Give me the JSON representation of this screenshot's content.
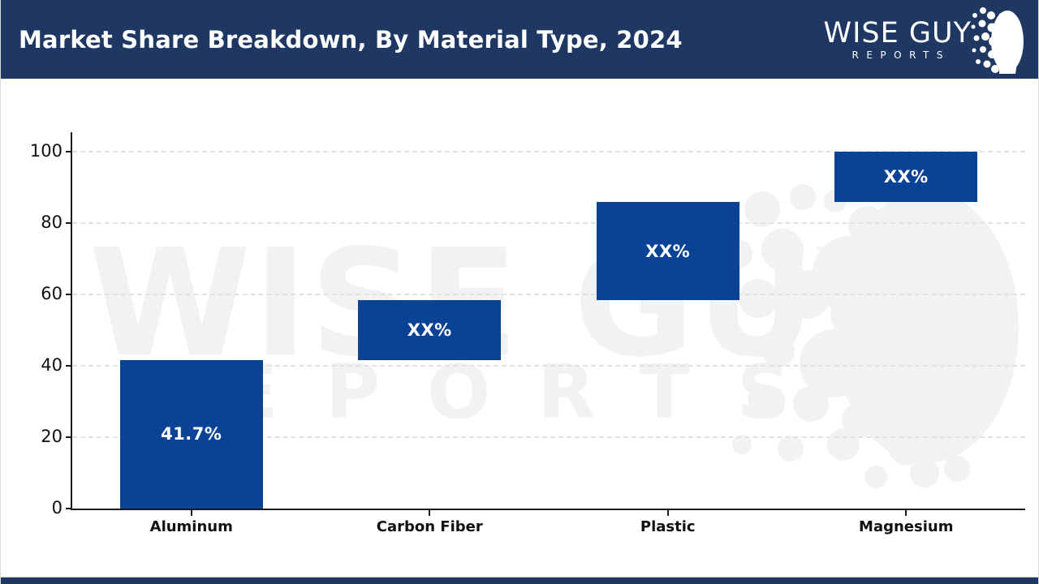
{
  "header": {
    "title": "Market Share Breakdown, By Material Type, 2024",
    "logo": {
      "line1": "WISE GUY",
      "line2": "REPORTS"
    }
  },
  "watermark": {
    "line1": "WISE GUY",
    "line2": "REPORTS"
  },
  "chart_data": {
    "type": "bar",
    "variant": "waterfall-floating-bars",
    "title": "Market Share Breakdown, By Material Type, 2024",
    "xlabel": "",
    "ylabel": "",
    "categories": [
      "Aluminum",
      "Carbon Fiber",
      "Plastic",
      "Magnesium"
    ],
    "segments": [
      {
        "category": "Aluminum",
        "start": 0,
        "end": 41.7,
        "label": "41.7%"
      },
      {
        "category": "Carbon Fiber",
        "start": 41.7,
        "end": 58.3,
        "label": "XX%"
      },
      {
        "category": "Plastic",
        "start": 58.3,
        "end": 86.0,
        "label": "XX%"
      },
      {
        "category": "Magnesium",
        "start": 86.0,
        "end": 100.0,
        "label": "XX%"
      }
    ],
    "yticks": [
      0,
      20,
      40,
      60,
      80,
      100
    ],
    "ylim": [
      0,
      105
    ],
    "grid": "dashed-horizontal",
    "legend": "none",
    "bar_color": "#0a4296",
    "bar_label_color": "#ffffff"
  },
  "colors": {
    "header_bg": "#1f3863",
    "bar": "#0a4296",
    "gridline": "#e2e2e6",
    "axis": "#1b1b1b",
    "watermark": "#f2f2f5",
    "frame_border": "#d9d9d9"
  }
}
